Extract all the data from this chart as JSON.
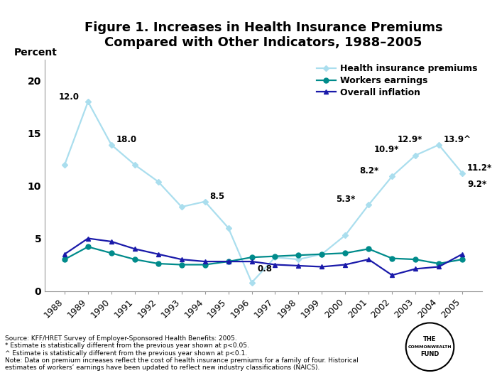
{
  "title": "Figure 1. Increases in Health Insurance Premiums\nCompared with Other Indicators, 1988–2005",
  "percent_label": "Percent",
  "years": [
    1988,
    1989,
    1990,
    1991,
    1992,
    1993,
    1994,
    1995,
    1996,
    1997,
    1998,
    1999,
    2000,
    2001,
    2002,
    2003,
    2004,
    2005
  ],
  "health_premiums": [
    12.0,
    18.0,
    13.9,
    12.0,
    10.4,
    8.0,
    8.5,
    6.0,
    0.8,
    3.2,
    3.0,
    3.5,
    5.3,
    8.2,
    10.9,
    12.9,
    13.9,
    11.2
  ],
  "workers_earnings": [
    3.0,
    4.2,
    3.6,
    3.0,
    2.6,
    2.5,
    2.5,
    2.8,
    3.2,
    3.3,
    3.4,
    3.5,
    3.6,
    4.0,
    3.1,
    3.0,
    2.6,
    3.0
  ],
  "overall_inflation": [
    3.5,
    5.0,
    4.7,
    4.0,
    3.5,
    3.0,
    2.8,
    2.8,
    2.8,
    2.5,
    2.4,
    2.3,
    2.5,
    3.0,
    1.5,
    2.1,
    2.3,
    3.5
  ],
  "health_color": "#AADEEE",
  "workers_color": "#008B8B",
  "inflation_color": "#1a1aaa",
  "ylim": [
    0,
    22
  ],
  "yticks": [
    0,
    5,
    10,
    15,
    20
  ],
  "source_text": "Source: KFF/HRET Survey of Employer-Sponsored Health Benefits: 2005.\n* Estimate is statistically different from the previous year shown at p<0.05.\n^ Estimate is statistically different from the previous year shown at p<0.1.\nNote: Data on premium increases reflect the cost of health insurance premiums for a family of four. Historical\nestimates of workers’ earnings have been updated to reflect new industry classifications (NAICS).",
  "background_color": "#FFFFFF"
}
